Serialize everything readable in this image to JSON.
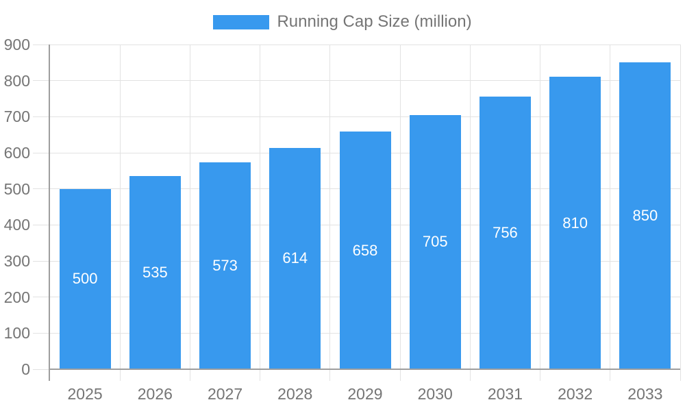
{
  "chart_data": {
    "type": "bar",
    "categories": [
      "2025",
      "2026",
      "2027",
      "2028",
      "2029",
      "2030",
      "2031",
      "2032",
      "2033"
    ],
    "series": [
      {
        "name": "Running Cap Size (million)",
        "values": [
          500,
          535,
          573,
          614,
          658,
          705,
          756,
          810,
          850
        ]
      }
    ],
    "title": "",
    "xlabel": "",
    "ylabel": "",
    "ylim": [
      0,
      900
    ],
    "ytick_step": 100,
    "yticks": [
      0,
      100,
      200,
      300,
      400,
      500,
      600,
      700,
      800,
      900
    ],
    "grid": true,
    "legend_position": "top-center",
    "bar_color": "#3899ee",
    "value_label_color": "#ffffff",
    "axis_color": "#9e9e9e",
    "grid_color": "#e2e2e2",
    "text_color": "#757575"
  }
}
